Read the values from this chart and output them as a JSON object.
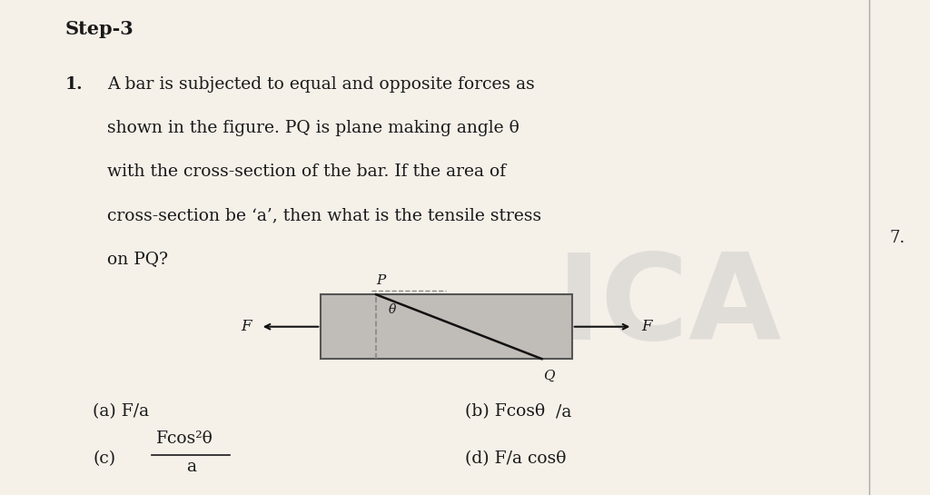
{
  "bg_color": "#f5f0e8",
  "text_color": "#1a1a1a",
  "step_text": "Step-3",
  "question_number": "1.",
  "question_text_lines": [
    "A bar is subjected to equal and opposite forces as",
    "shown in the figure. PQ is plane making angle θ",
    "with the cross-section of the bar. If the area of",
    "cross-section be ‘a’, then what is the tensile stress",
    "on PQ?"
  ],
  "opt_a": "(a) F/a",
  "opt_b_prefix": "(b) Fcosθ",
  "opt_b_suffix": "/a",
  "opt_c_label": "(c)",
  "opt_c_num": "Fcos²θ",
  "opt_c_den": "a",
  "opt_d": "(d) F/a cosθ",
  "bar_fill": "#c0bdb8",
  "bar_edge": "#555555",
  "dashed_line_color": "#888888",
  "diagonal_color": "#111111",
  "arrow_color": "#111111",
  "watermark_color": "#c8c8c8",
  "right_number": "7."
}
